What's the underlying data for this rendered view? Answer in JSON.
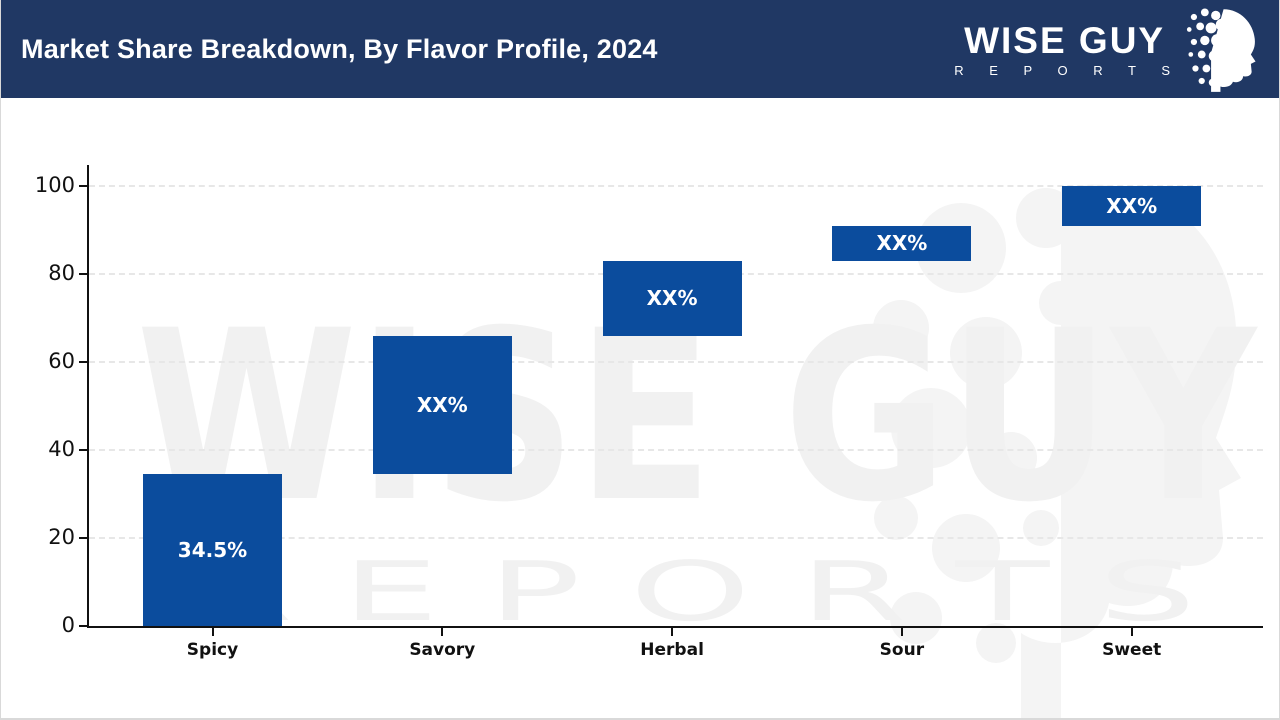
{
  "header": {
    "title": "Market Share Breakdown, By Flavor Profile, 2024",
    "logo": {
      "line1": "WISE GUY",
      "line2": "R E P O R T S"
    }
  },
  "watermark": {
    "line1": "WISE GUY",
    "line2": "R E P O R T S"
  },
  "chart_data": {
    "type": "bar",
    "subtype": "waterfall",
    "title": "Market Share Breakdown, By Flavor Profile, 2024",
    "categories": [
      "Spicy",
      "Savory",
      "Herbal",
      "Sour",
      "Sweet"
    ],
    "segments": [
      {
        "category": "Spicy",
        "start": 0,
        "end": 34.5,
        "label": "34.5%"
      },
      {
        "category": "Savory",
        "start": 34.5,
        "end": 66,
        "label": "XX%"
      },
      {
        "category": "Herbal",
        "start": 66,
        "end": 83,
        "label": "XX%"
      },
      {
        "category": "Sour",
        "start": 83,
        "end": 91,
        "label": "XX%"
      },
      {
        "category": "Sweet",
        "start": 91,
        "end": 100,
        "label": "XX%"
      }
    ],
    "xlabel": "",
    "ylabel": "",
    "ylim": [
      0,
      100
    ],
    "yticks": [
      0,
      20,
      40,
      60,
      80,
      100
    ],
    "grid": "horizontal-dashed",
    "legend": "none"
  },
  "colors": {
    "header_bg": "#203864",
    "bar": "#0b4c9d",
    "bar_label": "#ffffff",
    "grid": "#e7e7e7",
    "axis": "#111111",
    "watermark": "#f1f1f1",
    "logo_text": "#ffffff"
  }
}
